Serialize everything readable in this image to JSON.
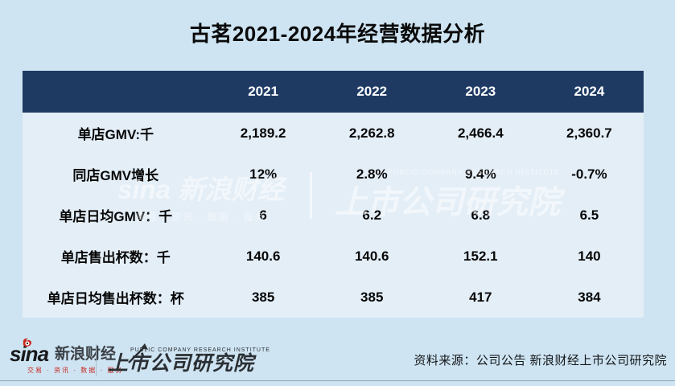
{
  "title": "古茗2021-2024年经营数据分析",
  "table": {
    "columns": [
      "",
      "2021",
      "2022",
      "2023",
      "2024"
    ],
    "rows": [
      {
        "label": "单店GMV:千",
        "values": [
          "2,189.2",
          "2,262.8",
          "2,466.4",
          "2,360.7"
        ]
      },
      {
        "label": "同店GMV增长",
        "values": [
          "12%",
          "2.8%",
          "9.4%",
          "-0.7%"
        ]
      },
      {
        "label": "单店日均GMV：千",
        "values": [
          "6",
          "6.2",
          "6.8",
          "6.5"
        ]
      },
      {
        "label": "单店售出杯数：千",
        "values": [
          "140.6",
          "140.6",
          "152.1",
          "140"
        ]
      },
      {
        "label": "单店日均售出杯数：杯",
        "values": [
          "385",
          "385",
          "417",
          "384"
        ]
      }
    ]
  },
  "chart_data": {
    "type": "table",
    "title": "古茗2021-2024年经营数据分析",
    "categories": [
      "2021",
      "2022",
      "2023",
      "2024"
    ],
    "series": [
      {
        "name": "单店GMV:千",
        "values": [
          2189.2,
          2262.8,
          2466.4,
          2360.7
        ]
      },
      {
        "name": "同店GMV增长",
        "values": [
          "12%",
          "2.8%",
          "9.4%",
          "-0.7%"
        ]
      },
      {
        "name": "单店日均GMV：千",
        "values": [
          6,
          6.2,
          6.8,
          6.5
        ]
      },
      {
        "name": "单店售出杯数：千",
        "values": [
          140.6,
          140.6,
          152.1,
          140
        ]
      },
      {
        "name": "单店日均售出杯数：杯",
        "values": [
          385,
          385,
          417,
          384
        ]
      }
    ]
  },
  "watermark": {
    "left_big": "sina 新浪财经",
    "left_small": "交易 · 资讯 · 数据 · 服务",
    "right_en": "PUBLIC COMPANY RESEARCH INSTITUTE",
    "right_big": "上市公司研究院"
  },
  "footer": {
    "sina_word": "sina",
    "sina_brand": "新浪财经",
    "sina_tagline": "交易 · 资讯 · 数据 · 服务",
    "institute_en": "PUBLIC COMPANY RESEARCH INSTITUTE",
    "institute_cn": "上市公司研究院",
    "source": "资料来源：公司公告 新浪财经上市公司研究院"
  },
  "colors": {
    "page_bg": "#cee4f2",
    "table_header_bg": "#1e3a63",
    "table_body_bg": "#e4eef7",
    "header_text": "#ffffff",
    "body_text": "#070707",
    "sina_red": "#c8271d",
    "logo_dark": "#2b2f33"
  }
}
